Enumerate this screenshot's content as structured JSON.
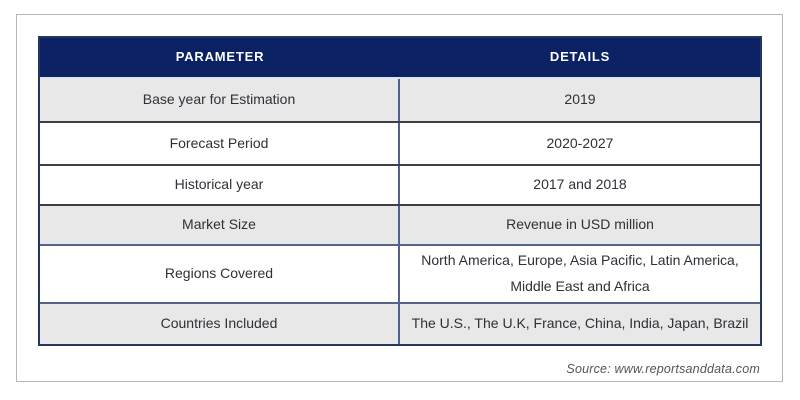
{
  "colors": {
    "header_bg": "#0a2164",
    "header_text": "#ffffff",
    "shaded_row_bg": "#e8e8e8",
    "white_row_bg": "#ffffff",
    "cell_text": "#2f3038",
    "table_border": "#26365f",
    "column_divider": "#4f6190",
    "separator_dark": "#3c3f47",
    "separator_slate": "#54648f",
    "frame_border": "#b6b6b6",
    "source_text": "#55565a"
  },
  "table": {
    "headers": [
      {
        "label": "PARAMETER"
      },
      {
        "label": "DETAILS"
      }
    ],
    "rows": [
      {
        "parameter": "Base year for Estimation",
        "details": "2019"
      },
      {
        "parameter": "Forecast Period",
        "details": "2020-2027"
      },
      {
        "parameter": "Historical year",
        "details": "2017 and 2018"
      },
      {
        "parameter": "Market Size",
        "details": "Revenue in USD million"
      },
      {
        "parameter": "Regions Covered",
        "details": "North America, Europe, Asia Pacific, Latin America, Middle East and Africa"
      },
      {
        "parameter": "Countries Included",
        "details": "The U.S., The  U.K, France, China, India, Japan, Brazil"
      }
    ]
  },
  "footer": {
    "source_note": "Source: www.reportsanddata.com"
  }
}
